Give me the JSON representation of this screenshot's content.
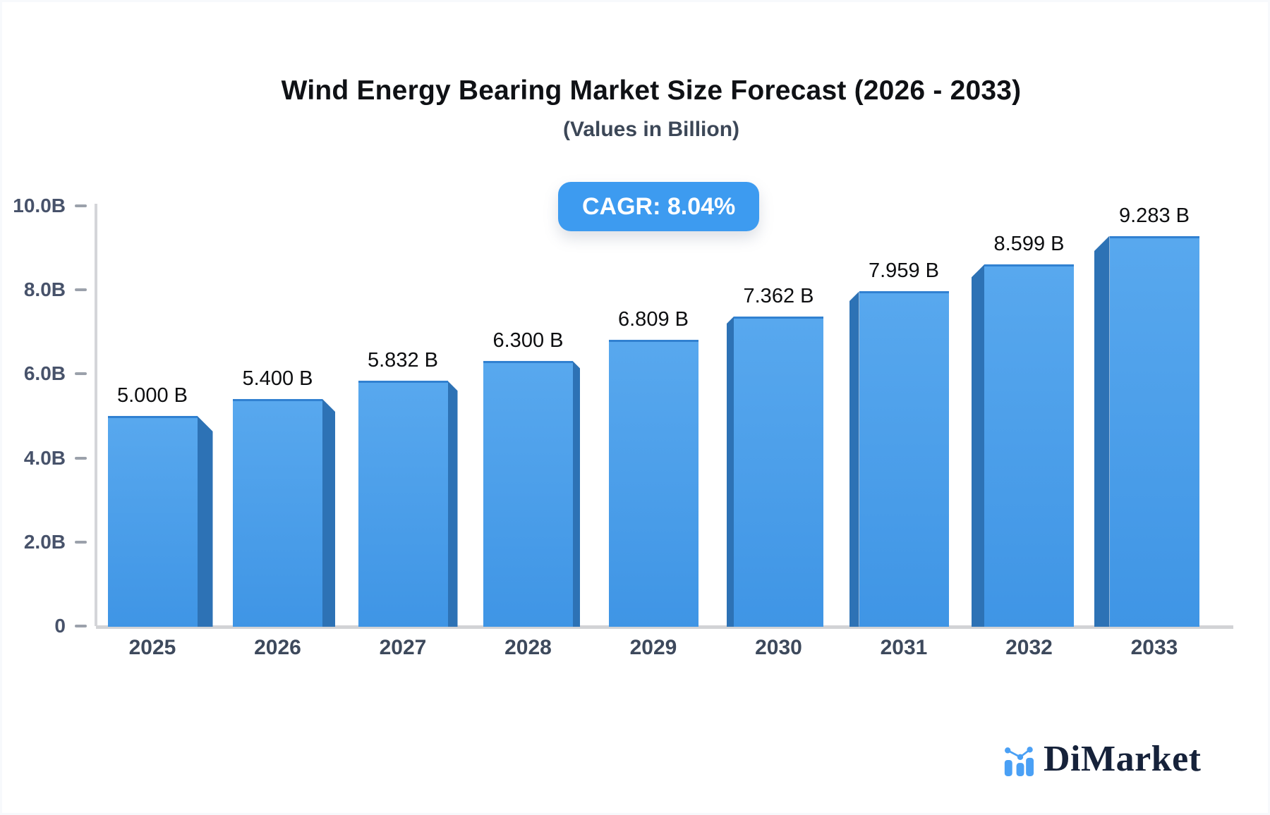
{
  "header": {
    "title": "Wind Energy Bearing Market Size Forecast (2026 - 2033)",
    "subtitle": "(Values in Billion)"
  },
  "badge": {
    "label": "CAGR: 8.04%",
    "background": "#3d9bf0",
    "text_color": "#ffffff"
  },
  "chart_data": {
    "type": "bar",
    "title": "Wind Energy Bearing Market Size Forecast (2026 - 2033)",
    "subtitle": "(Values in Billion)",
    "annotation": "CAGR: 8.04%",
    "categories": [
      "2025",
      "2026",
      "2027",
      "2028",
      "2029",
      "2030",
      "2031",
      "2032",
      "2033"
    ],
    "values": [
      5.0,
      5.4,
      5.832,
      6.3,
      6.809,
      7.362,
      7.959,
      8.599,
      9.283
    ],
    "bar_labels": [
      "5.000 B",
      "5.400 B",
      "5.832 B",
      "6.300 B",
      "6.809 B",
      "7.362 B",
      "7.959 B",
      "8.599 B",
      "9.283 B"
    ],
    "ylim": [
      0,
      10
    ],
    "yticks": [
      {
        "value": 0,
        "label": "0"
      },
      {
        "value": 2,
        "label": "2.0B"
      },
      {
        "value": 4,
        "label": "4.0B"
      },
      {
        "value": 6,
        "label": "6.0B"
      },
      {
        "value": 8,
        "label": "8.0B"
      },
      {
        "value": 10,
        "label": "10.0B"
      }
    ],
    "grid": false,
    "legend": "none",
    "colors": {
      "bar_face_top": "#58a8ee",
      "bar_face_bottom": "#3f95e5",
      "bar_top_edge": "#3181d1",
      "bar_side": "#2d72b5",
      "axis_line": "#d2d3d6",
      "tick": "#9ba1ab",
      "ytick_label": "#47526a",
      "xtick_label": "#3d495c",
      "value_label": "#0d0e10"
    }
  },
  "logo": {
    "text": "DiMarket",
    "text_color": "#16223a",
    "icon": "mini-bar-chart-logo-icon",
    "icon_color": "#4aa0f5"
  }
}
